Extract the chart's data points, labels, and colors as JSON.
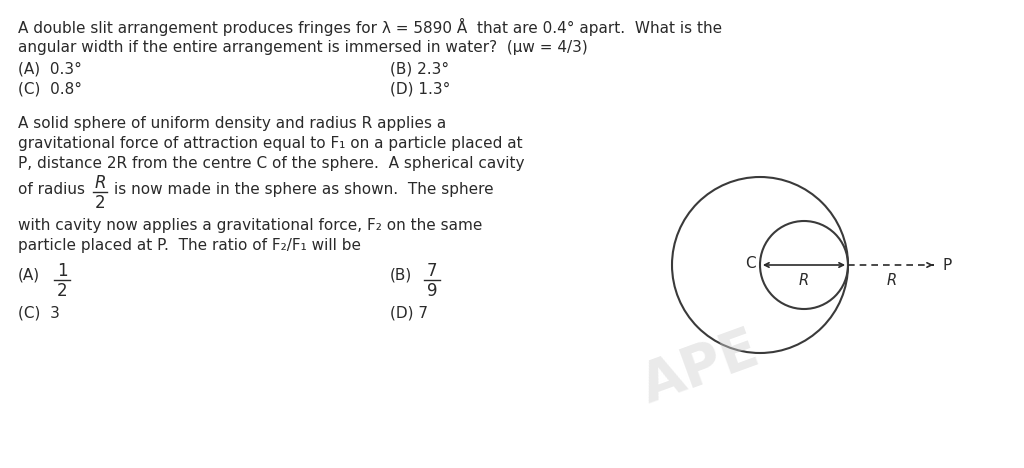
{
  "bg_color": "#ffffff",
  "text_color": "#2a2a2a",
  "q1_line1": "A double slit arrangement produces fringes for λ = 5890 Å  that are 0.4° apart.  What is the",
  "q1_line2": "angular width if the entire arrangement is immersed in water?  (μw = 4/3)",
  "q1_A": "(A)  0.3°",
  "q1_B": "(B) 2.3°",
  "q1_C": "(C)  0.8°",
  "q1_D": "(D) 1.3°",
  "q2_line1": "A solid sphere of uniform density and radius R applies a",
  "q2_line2": "gravitational force of attraction equal to F₁ on a particle placed at",
  "q2_line3": "P, distance 2R from the centre C of the sphere.  A spherical cavity",
  "q2_line5": "with cavity now applies a gravitational force, F₂ on the same",
  "q2_line6": "particle placed at P.  The ratio of F₂/F₁ will be",
  "q2_A_num": "1",
  "q2_A_den": "2",
  "q2_B_num": "7",
  "q2_B_den": "9",
  "q2_C": "(C)  3",
  "q2_D": "(D) 7",
  "watermark": "APE",
  "font_size_main": 11.0
}
